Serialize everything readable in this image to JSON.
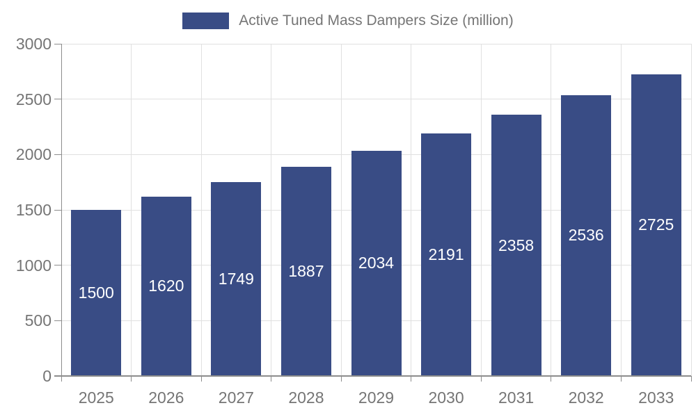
{
  "chart_data": {
    "type": "bar",
    "title": "",
    "legend": {
      "label": "Active Tuned Mass Dampers Size (million)",
      "position": "top-center"
    },
    "categories": [
      "2025",
      "2026",
      "2027",
      "2028",
      "2029",
      "2030",
      "2031",
      "2032",
      "2033"
    ],
    "values": [
      1500,
      1620,
      1749,
      1887,
      2034,
      2191,
      2358,
      2536,
      2725
    ],
    "value_labels_shown": true,
    "value_label_position": "inside-center",
    "xlabel": "",
    "ylabel": "",
    "ylim": [
      0,
      3000
    ],
    "yticks": [
      0,
      500,
      1000,
      1500,
      2000,
      2500,
      3000
    ],
    "grid": true,
    "colors": {
      "bar": "#394C85",
      "value_label": "#FFFFFF",
      "axis_text": "#757575",
      "legend_text": "#757575",
      "grid_line": "#E0E0E0",
      "axis_line": "#8C8C8C",
      "background": "#FFFFFF"
    }
  }
}
